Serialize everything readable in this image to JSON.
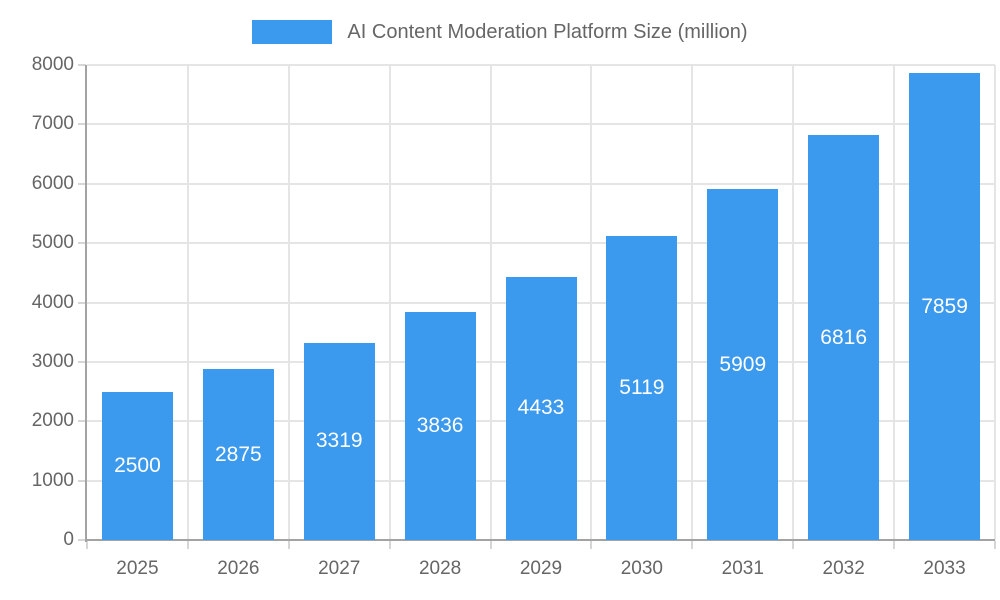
{
  "chart_data": {
    "type": "bar",
    "title": "AI Content Moderation Platform Size (million)",
    "categories": [
      "2025",
      "2026",
      "2027",
      "2028",
      "2029",
      "2030",
      "2031",
      "2032",
      "2033"
    ],
    "values": [
      2500,
      2875,
      3319,
      3836,
      4433,
      5119,
      5909,
      6816,
      7859
    ],
    "value_labels": [
      "2500",
      "2875",
      "3319",
      "3836",
      "4433",
      "5119",
      "5909",
      "6816",
      "7859"
    ],
    "xlabel": "",
    "ylabel": "",
    "ylim": [
      0,
      8000
    ],
    "yticks": [
      0,
      1000,
      2000,
      3000,
      4000,
      5000,
      6000,
      7000,
      8000
    ],
    "ytick_labels": [
      "0",
      "1000",
      "2000",
      "3000",
      "4000",
      "5000",
      "6000",
      "7000",
      "8000"
    ],
    "grid": true,
    "legend_position": "top"
  },
  "colors": {
    "bar": "#3B99EE",
    "axis": "#A3A3A3",
    "grid": "#E5E5E5",
    "tick": "#D6D6D6",
    "text": "#666666",
    "value_label": "#FFFFFF",
    "background": "#FFFFFF"
  }
}
